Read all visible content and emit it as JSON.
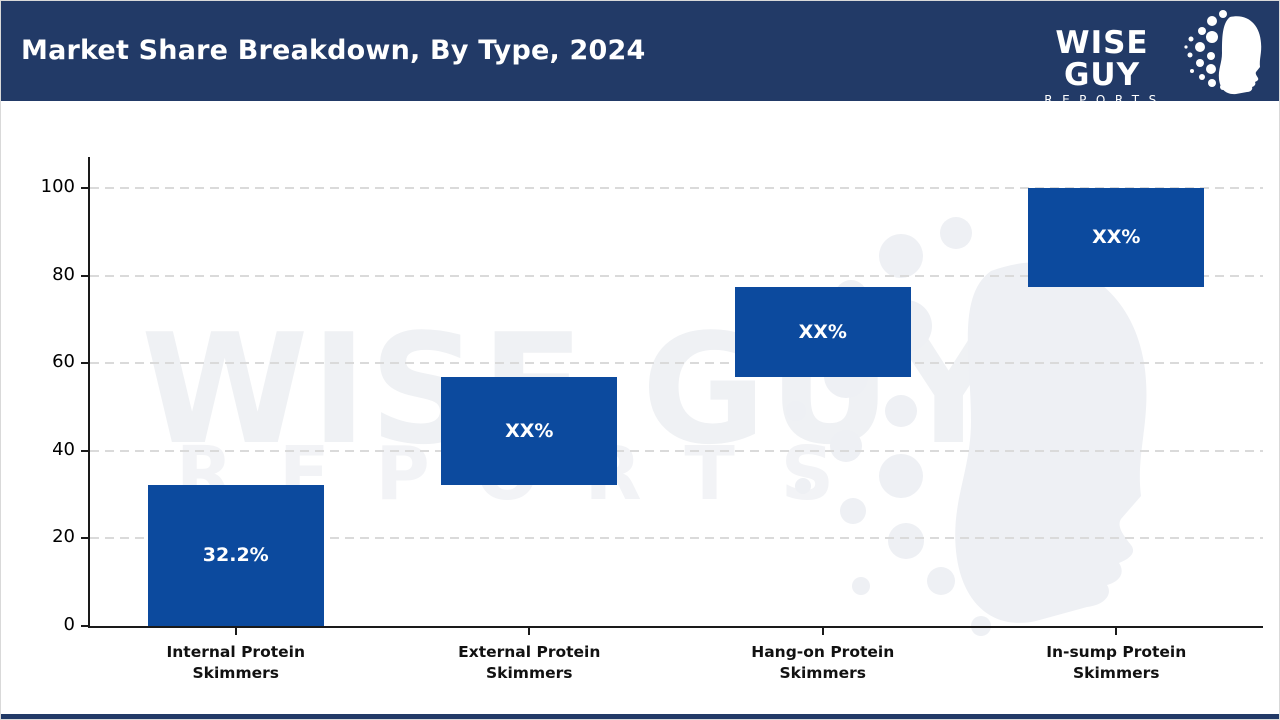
{
  "header": {
    "title": "Market Share Breakdown, By Type, 2024",
    "logo": {
      "line1": "WISE GUY",
      "line2": "REPORTS"
    }
  },
  "watermark": {
    "line1": "WISE GUY",
    "line2": "REPORTS"
  },
  "colors": {
    "header_bg": "#223a67",
    "bar": "#0c4a9e",
    "gridline": "#dadada",
    "axis": "#1a1a1a"
  },
  "chart_data": {
    "type": "bar",
    "subtype": "waterfall",
    "title": "Market Share Breakdown, By Type, 2024",
    "xlabel": "",
    "ylabel": "",
    "ylim": [
      0,
      107
    ],
    "yticks": [
      0,
      20,
      40,
      60,
      80,
      100
    ],
    "grid": "horizontal-dashed",
    "legend": "none",
    "categories": [
      "Internal Protein Skimmers",
      "External Protein Skimmers",
      "Hang-on Protein Skimmers",
      "In-sump Protein Skimmers"
    ],
    "segments": [
      {
        "category": "Internal Protein Skimmers",
        "start": 0,
        "end": 32.2,
        "value": 32.2,
        "label": "32.2%"
      },
      {
        "category": "External Protein Skimmers",
        "start": 32.2,
        "end": 56.9,
        "value": 24.7,
        "label": "XX%"
      },
      {
        "category": "Hang-on Protein Skimmers",
        "start": 56.9,
        "end": 77.4,
        "value": 20.5,
        "label": "XX%"
      },
      {
        "category": "In-sump Protein Skimmers",
        "start": 77.4,
        "end": 100,
        "value": 22.6,
        "label": "XX%"
      }
    ]
  }
}
